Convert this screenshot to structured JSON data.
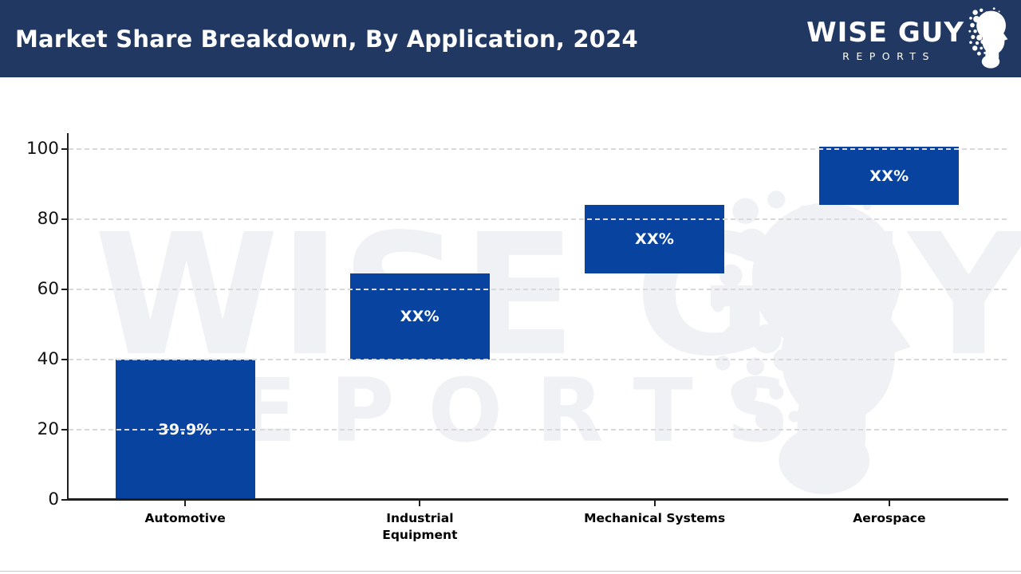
{
  "header": {
    "title": "Market Share Breakdown, By Application, 2024"
  },
  "brand": {
    "line1": "WISE GUY",
    "line2": "REPORTS",
    "head_icon": "dotted-head-profile"
  },
  "watermark": {
    "line1": "WISE GUY",
    "line2": "REPORTS",
    "head_icon": "dotted-head-profile",
    "color": "#eff1f4"
  },
  "chart_data": {
    "type": "bar",
    "subtype": "waterfall",
    "title": "Market Share Breakdown, By Application, 2024",
    "categories": [
      "Automotive",
      "Industrial Equipment",
      "Mechanical Systems",
      "Aerospace"
    ],
    "category_lines": [
      [
        "Automotive"
      ],
      [
        "Industrial",
        "Equipment"
      ],
      [
        "Mechanical Systems"
      ],
      [
        "Aerospace"
      ]
    ],
    "segments": [
      {
        "category": "Automotive",
        "start": 0,
        "end": 39.9,
        "label": "39.9%"
      },
      {
        "category": "Industrial Equipment",
        "start": 39.9,
        "end": 64.5,
        "label": "XX%"
      },
      {
        "category": "Mechanical Systems",
        "start": 64.5,
        "end": 84.0,
        "label": "XX%"
      },
      {
        "category": "Aerospace",
        "start": 84.0,
        "end": 100.6,
        "label": "XX%"
      }
    ],
    "xlabel": "",
    "ylabel": "",
    "yticks": [
      0,
      20,
      40,
      60,
      80,
      100
    ],
    "ylim": [
      0,
      105
    ],
    "grid": {
      "axis": "y",
      "style": "dashed",
      "color": "#d9d9d9",
      "over_bars": true
    },
    "legend": null,
    "colors": {
      "bar": "#0843a0",
      "bar_label": "#ffffff",
      "axis": "#1f1f1f",
      "tick_label": "#111111",
      "header_bg": "#203862"
    }
  }
}
